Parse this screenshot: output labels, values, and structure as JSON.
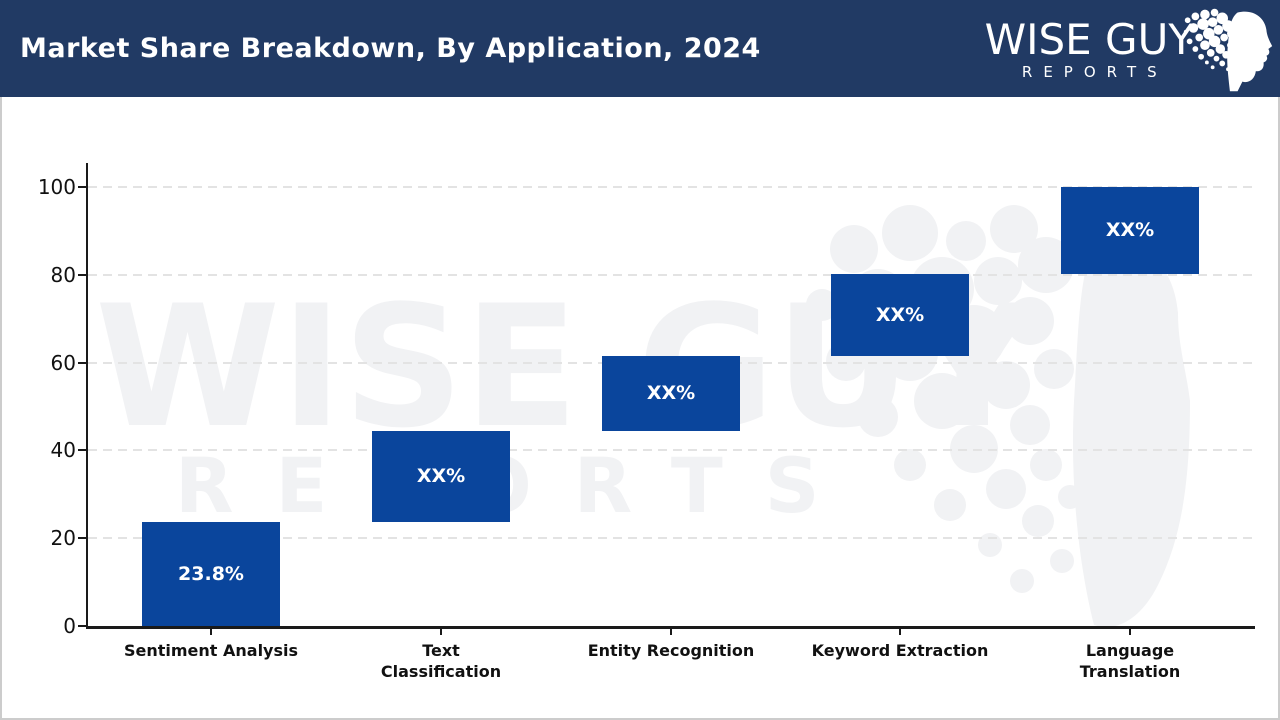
{
  "header": {
    "title": "Market Share Breakdown, By Application, 2024",
    "logo": {
      "line1": "WISE GUY",
      "line2": "REPORTS"
    }
  },
  "watermark": {
    "line1": "WISE GUY",
    "line2": "REPORTS"
  },
  "colors": {
    "header_bg": "#213a64",
    "bar": "#0a459c",
    "grid": "#e3e3e3",
    "axis": "#1a1a1a",
    "title_text": "#ffffff",
    "bar_label_text": "#ffffff",
    "watermark": "#f1f2f4",
    "frame_border": "#cccccc"
  },
  "chart_data": {
    "type": "bar",
    "subtype": "waterfall",
    "title": "Market Share Breakdown, By Application, 2024",
    "categories": [
      "Sentiment Analysis",
      "Text Classification",
      "Entity Recognition",
      "Keyword Extraction",
      "Language Translation"
    ],
    "tick_label_lines": [
      [
        "Sentiment Analysis"
      ],
      [
        "Text",
        "Classification"
      ],
      [
        "Entity Recognition"
      ],
      [
        "Keyword Extraction"
      ],
      [
        "Language",
        "Translation"
      ]
    ],
    "segments": [
      {
        "category": "Sentiment Analysis",
        "start": 0,
        "end": 23.8,
        "value_label": "23.8%"
      },
      {
        "category": "Text Classification",
        "start": 23.8,
        "end": 44.4,
        "value_label": "XX%"
      },
      {
        "category": "Entity Recognition",
        "start": 44.4,
        "end": 61.6,
        "value_label": "XX%"
      },
      {
        "category": "Keyword Extraction",
        "start": 61.6,
        "end": 80.2,
        "value_label": "XX%"
      },
      {
        "category": "Language Translation",
        "start": 80.2,
        "end": 100,
        "value_label": "XX%"
      }
    ],
    "yticks": [
      0,
      20,
      40,
      60,
      80,
      100
    ],
    "ylim": [
      0,
      105
    ],
    "xlabel": "",
    "ylabel": "",
    "grid": "dashed-horizontal",
    "legend": "none"
  }
}
